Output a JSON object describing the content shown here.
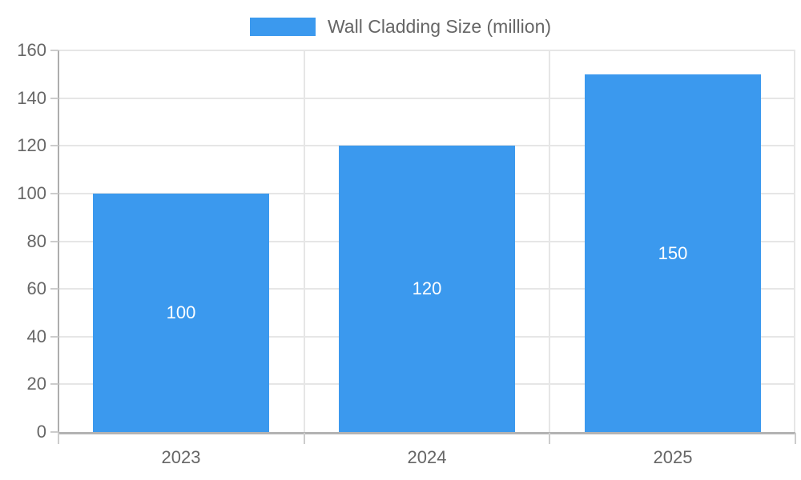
{
  "chart_data": {
    "type": "bar",
    "title": "",
    "xlabel": "",
    "ylabel": "",
    "categories": [
      "2023",
      "2024",
      "2025"
    ],
    "series": [
      {
        "name": "Wall Cladding Size (million)",
        "values": [
          100,
          120,
          150
        ]
      }
    ],
    "bar_value_labels": [
      "100",
      "120",
      "150"
    ],
    "ylim": [
      0,
      160
    ],
    "yticks": [
      0,
      20,
      40,
      60,
      80,
      100,
      120,
      140,
      160
    ],
    "grid": true,
    "legend_position": "top-center"
  },
  "legend": {
    "label": "Wall Cladding Size (million)"
  },
  "colors": {
    "bar": "#3b99ee",
    "grid": "#e6e6e6",
    "axis_y": "#adadad",
    "axis_x": "#b3b3b3",
    "tick": "#cccccc",
    "text": "#666666",
    "bar_label_text": "#ffffff",
    "background": "#ffffff"
  }
}
